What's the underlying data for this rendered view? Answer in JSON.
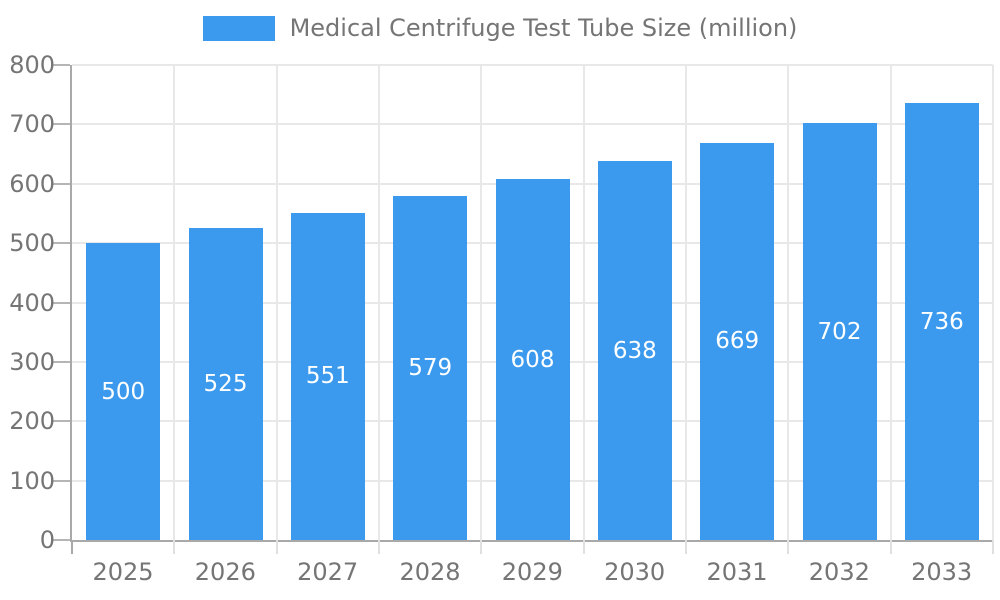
{
  "chart_data": {
    "type": "bar",
    "title": "Medical Centrifuge Test Tube Size (million)",
    "categories": [
      "2025",
      "2026",
      "2027",
      "2028",
      "2029",
      "2030",
      "2031",
      "2032",
      "2033"
    ],
    "values": [
      500,
      525,
      551,
      579,
      608,
      638,
      669,
      702,
      736
    ],
    "xlabel": "",
    "ylabel": "",
    "ylim": [
      0,
      800
    ],
    "yticks": [
      0,
      100,
      200,
      300,
      400,
      500,
      600,
      700,
      800
    ],
    "grid": true,
    "legend_position": "top",
    "colors": {
      "bar": "#3b9aee",
      "bar_value_text": "#ffffff",
      "axis_line": "#a9a9a9",
      "grid_line": "#e8e8e8",
      "tick_mark": "#b5b5b5",
      "boundary_tick": "#e0e0e0",
      "axis_text": "#757575",
      "legend_text": "#757575"
    }
  }
}
